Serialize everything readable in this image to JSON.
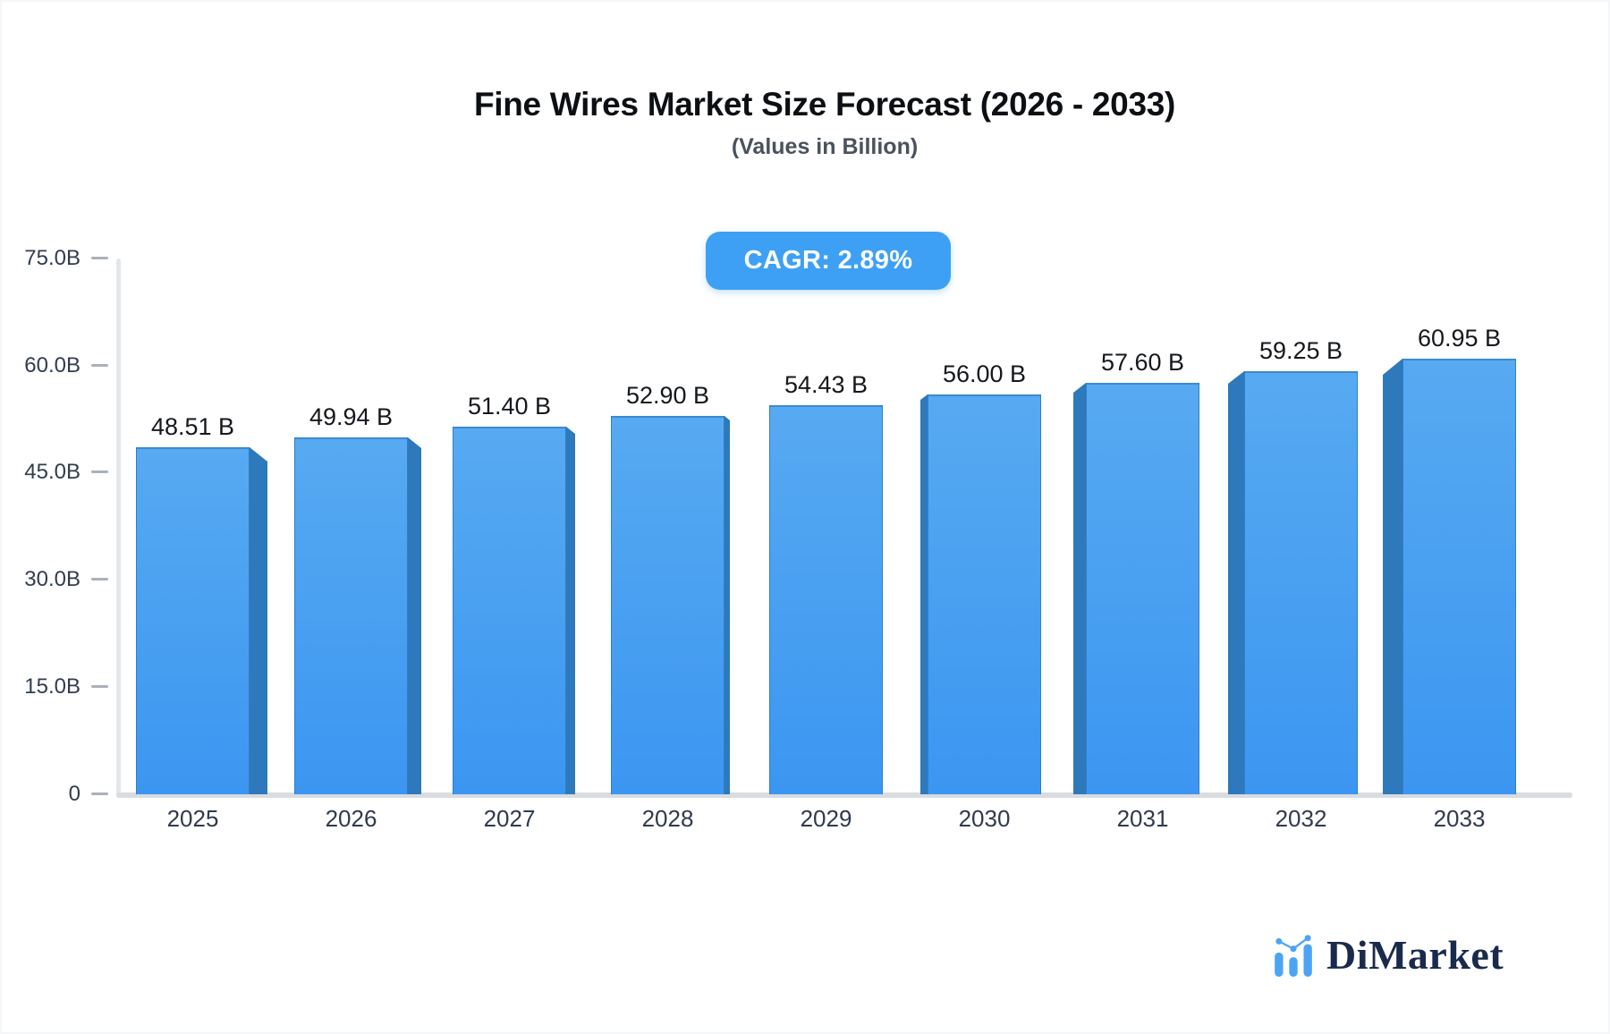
{
  "chart_data": {
    "type": "bar",
    "title": "Fine Wires Market Size Forecast (2026 - 2033)",
    "subtitle": "(Values in Billion)",
    "annotation": "CAGR: 2.89%",
    "cagr": "2.89%",
    "categories": [
      "2025",
      "2026",
      "2027",
      "2028",
      "2029",
      "2030",
      "2031",
      "2032",
      "2033"
    ],
    "values": [
      48.51,
      49.94,
      51.4,
      52.9,
      54.43,
      56.0,
      57.6,
      59.25,
      60.95
    ],
    "value_labels": [
      "48.51 B",
      "49.94 B",
      "51.40 B",
      "52.90 B",
      "54.43 B",
      "56.00 B",
      "57.60 B",
      "59.25 B",
      "60.95 B"
    ],
    "ylim": [
      0,
      75
    ],
    "yticks": [
      {
        "value": 75,
        "label": "75.0B"
      },
      {
        "value": 60,
        "label": "60.0B"
      },
      {
        "value": 45,
        "label": "45.0B"
      },
      {
        "value": 30,
        "label": "30.0B"
      },
      {
        "value": 15,
        "label": "15.0B"
      },
      {
        "value": 0,
        "label": "0"
      }
    ],
    "grid": false,
    "legend": false,
    "bar_style": "3d-perspective",
    "colors": {
      "bar_top": "#57aaf1",
      "bar_bottom": "#3c96f1",
      "bar_edge": "#3a8ad2",
      "bar_outline": "#2f7fc6",
      "bar_side": "#2e79bb",
      "badge": "#3da0f4",
      "title_text": "#0c0f13",
      "subtitle_text": "#49525d",
      "axis_text": "#2f3a4d",
      "value_text": "#15181c",
      "axis_line": "#e4e7ea",
      "baseline": "#d9dce0"
    }
  },
  "branding": {
    "name": "DiMarket",
    "icon": "bar-chart-trend-icon",
    "icon_color": "#4da4f5",
    "text_color": "#1a2a4c"
  }
}
